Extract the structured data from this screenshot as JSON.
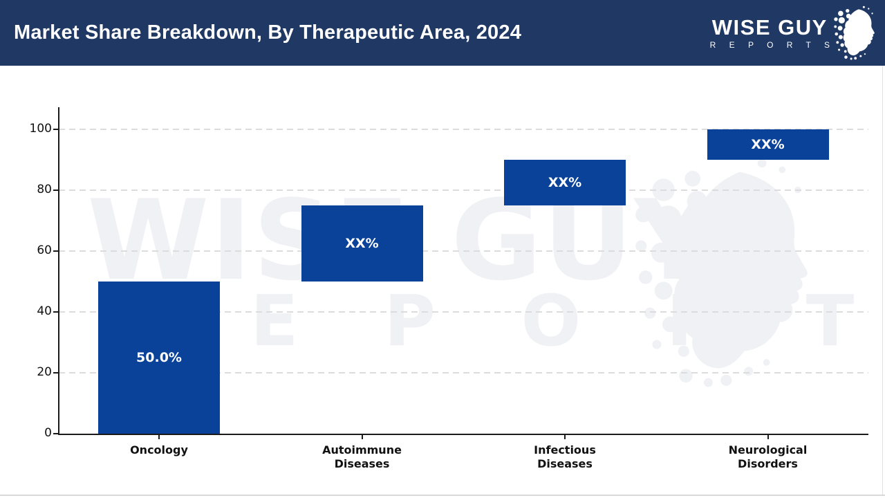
{
  "header": {
    "title": "Market Share Breakdown, By Therapeutic Area, 2024",
    "bg_color": "#1f3864",
    "logo": {
      "line1": "WISE GUY",
      "line2": "R E P O R T S"
    }
  },
  "watermark": {
    "line1": "WISE GUY",
    "line2": "R E P O R T S"
  },
  "chart_data": {
    "type": "bar",
    "subtype": "waterfall",
    "title": "Market Share Breakdown, By Therapeutic Area, 2024",
    "categories": [
      "Oncology",
      "Autoimmune Diseases",
      "Infectious Diseases",
      "Neurological Disorders"
    ],
    "category_lines": [
      [
        "Oncology"
      ],
      [
        "Autoimmune",
        "Diseases"
      ],
      [
        "Infectious",
        "Diseases"
      ],
      [
        "Neurological",
        "Disorders"
      ]
    ],
    "segments": [
      {
        "category": "Oncology",
        "start": 0,
        "end": 50,
        "label": "50.0%"
      },
      {
        "category": "Autoimmune Diseases",
        "start": 50,
        "end": 75,
        "label": "XX%"
      },
      {
        "category": "Infectious Diseases",
        "start": 75,
        "end": 90,
        "label": "XX%"
      },
      {
        "category": "Neurological Disorders",
        "start": 90,
        "end": 100,
        "label": "XX%"
      }
    ],
    "xlabel": "",
    "ylabel": "",
    "ylim": [
      0,
      100
    ],
    "yticks": [
      0,
      20,
      40,
      60,
      80,
      100
    ],
    "grid": "horizontal-dashed",
    "legend": "none",
    "bar_color": "#0b4299",
    "bar_label_color": "#ffffff",
    "axis_color": "#1a1a1a",
    "grid_color": "#dcdcdc"
  }
}
